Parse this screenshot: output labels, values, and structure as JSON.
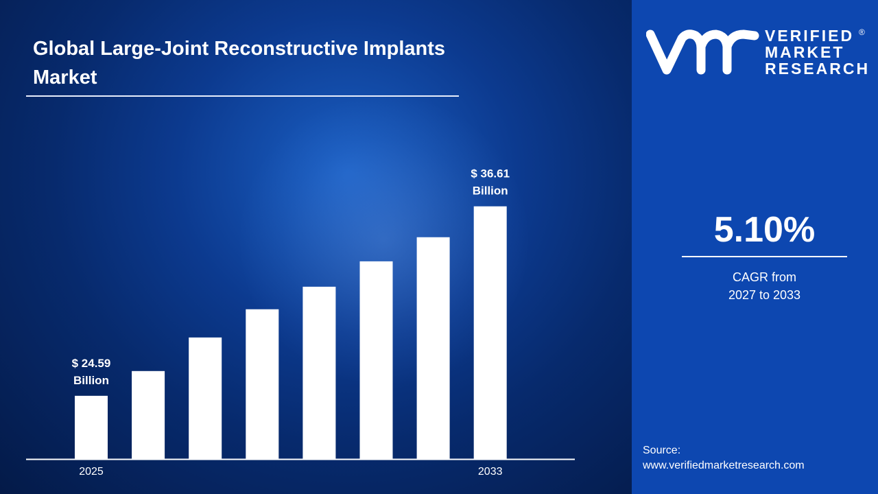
{
  "title": "Global Large-Joint Reconstructive Implants Market",
  "logo": {
    "line1": "VERIFIED",
    "line2": "MARKET",
    "line3": "RESEARCH",
    "mark": "vmr",
    "registered": "®"
  },
  "cagr": {
    "value": "5.10%",
    "label_line1": "CAGR from",
    "label_line2": "2027 to 2033"
  },
  "source": {
    "label": "Source:",
    "url": "www.verifiedmarketresearch.com"
  },
  "colors": {
    "panel": "#0d47b0",
    "bars": "#ffffff",
    "background": "#0a3584"
  },
  "chart_data": {
    "type": "bar",
    "categories": [
      "2025",
      "",
      "",
      "",
      "",
      "",
      "",
      "2033"
    ],
    "values": [
      24.59,
      26.16,
      28.29,
      30.08,
      31.51,
      33.12,
      34.65,
      36.61
    ],
    "data_labels": [
      {
        "index": 0,
        "line1": "$ 24.59",
        "line2": "Billion"
      },
      {
        "index": 7,
        "line1": "$ 36.61",
        "line2": "Billion"
      }
    ],
    "title": "",
    "xlabel": "",
    "ylabel": "",
    "ylim": [
      20.58,
      38.6
    ],
    "grid": false,
    "legend": "none"
  }
}
